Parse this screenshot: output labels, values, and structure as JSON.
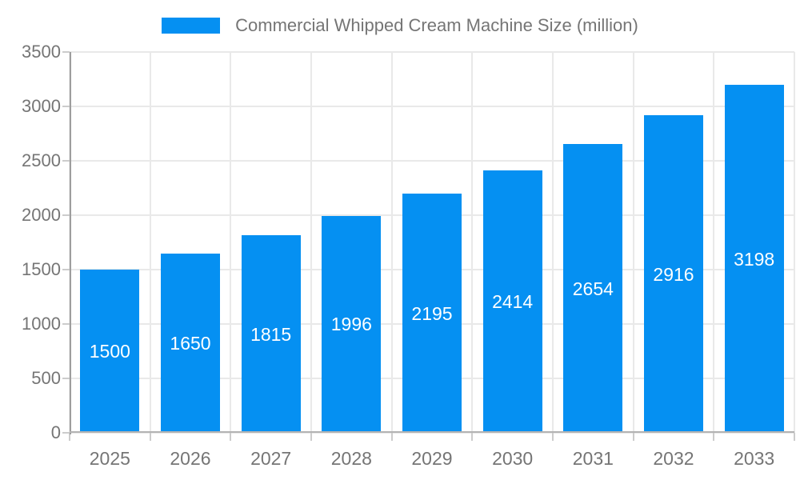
{
  "chart_data": {
    "type": "bar",
    "title": "Commercial Whipped Cream Machine Size (million)",
    "legend": [
      "Commercial Whipped Cream Machine Size (million)"
    ],
    "legend_position": "top",
    "categories": [
      "2025",
      "2026",
      "2027",
      "2028",
      "2029",
      "2030",
      "2031",
      "2032",
      "2033"
    ],
    "values": [
      1500,
      1650,
      1815,
      1996,
      2195,
      2414,
      2654,
      2916,
      3198
    ],
    "xlabel": "",
    "ylabel": "",
    "ylim": [
      0,
      3500
    ],
    "yticks": [
      0,
      500,
      1000,
      1500,
      2000,
      2500,
      3000,
      3500
    ],
    "grid": true,
    "bar_labels_shown": true,
    "colors": {
      "bar": "#0590f2",
      "bar_label": "#ffffff",
      "axis_text": "#757575",
      "grid": "#e9e9e9",
      "y_axis_line": "#9e9e9e",
      "x_axis_line": "#b3b3b3",
      "tick": "#cccccc",
      "background": "#ffffff"
    }
  }
}
